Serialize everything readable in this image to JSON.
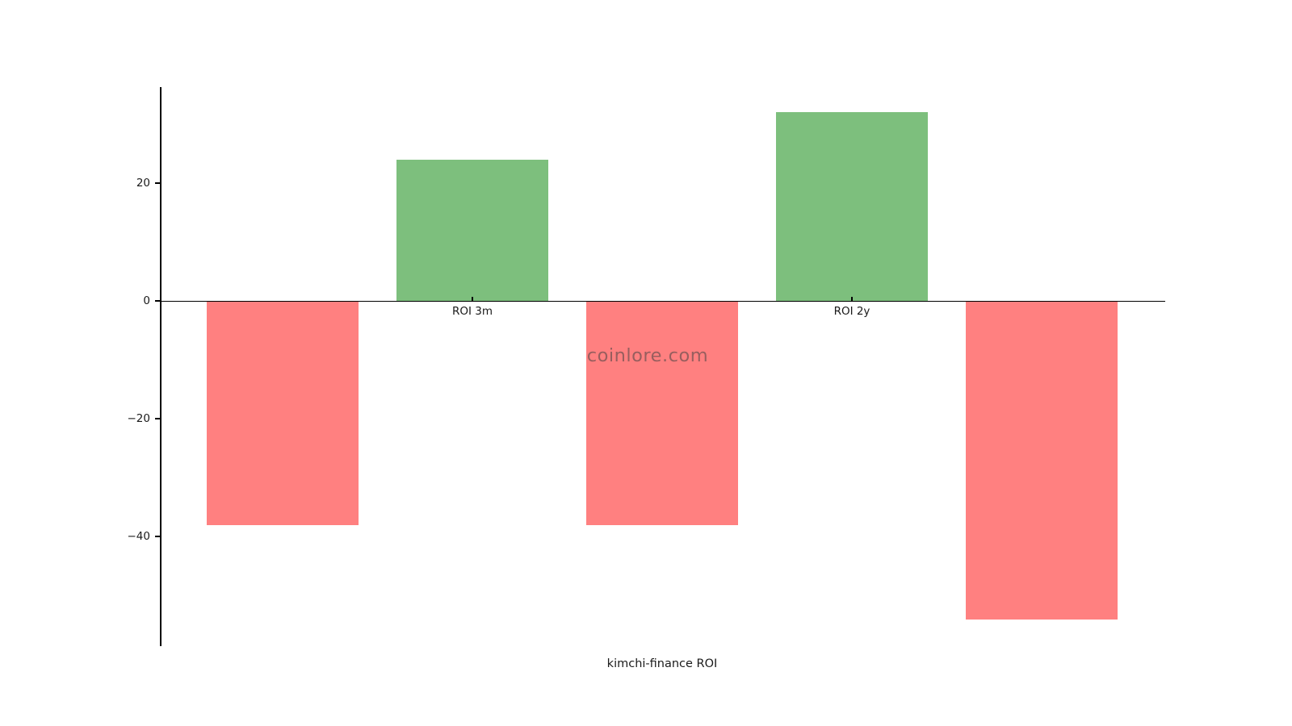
{
  "page": {
    "background": "#ffffff"
  },
  "watermark": {
    "text": "coinlore.com",
    "color": "#444444",
    "opacity": 0.55
  },
  "chart_data": {
    "type": "bar",
    "title": "kimchi-finance ROI",
    "title_position": "bottom-center",
    "categories": [
      "",
      "ROI 3m",
      "",
      "ROI 2y",
      ""
    ],
    "values": [
      -38,
      24,
      -38,
      32,
      -54
    ],
    "bar_colors": [
      "#ff8080",
      "#7dbf7d",
      "#ff8080",
      "#7dbf7d",
      "#ff8080"
    ],
    "color_rule": {
      "positive": "#7dbf7d",
      "negative": "#ff8080"
    },
    "xlabel": "",
    "ylabel": "",
    "ylim": [
      -58.5,
      36.5
    ],
    "yticks": [
      {
        "value": 20,
        "label": "20"
      },
      {
        "value": 0,
        "label": "0"
      },
      {
        "value": -20,
        "label": "−20"
      },
      {
        "value": -40,
        "label": "−40"
      }
    ],
    "xticks": [
      {
        "index": 1,
        "label": "ROI 3m"
      },
      {
        "index": 3,
        "label": "ROI 2y"
      }
    ],
    "grid": false,
    "legend": null,
    "axis_color": "#000000",
    "text_color": "#1a1a1a",
    "baseline": 0
  }
}
